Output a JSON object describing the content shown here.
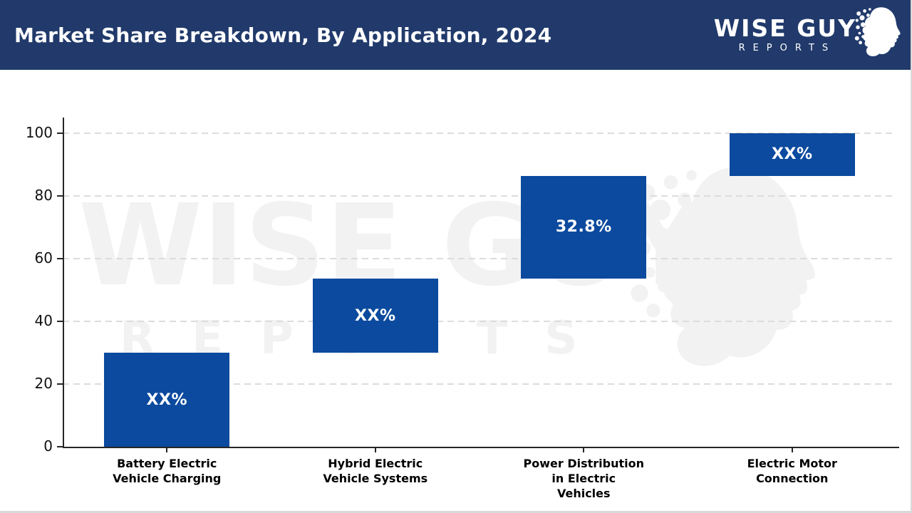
{
  "header": {
    "title": "Market Share Breakdown, By Application, 2024",
    "logo": {
      "wordmark": "WISE GUY",
      "subtitle": "REPORTS"
    }
  },
  "watermark": {
    "wordmark": "WISE GUY",
    "subtitle": "REPORTS"
  },
  "chart_data": {
    "type": "bar",
    "subtype": "floating-segment-waterfall",
    "title": "Market Share Breakdown, By Application, 2024",
    "categories": [
      "Battery Electric Vehicle Charging",
      "Hybrid Electric Vehicle Systems",
      "Power Distribution in Electric Vehicles",
      "Electric Motor Connection"
    ],
    "category_lines": [
      [
        "Battery Electric",
        "Vehicle Charging"
      ],
      [
        "Hybrid Electric",
        "Vehicle Systems"
      ],
      [
        "Power Distribution",
        "in Electric",
        "Vehicles"
      ],
      [
        "Electric Motor",
        "Connection"
      ]
    ],
    "segments": [
      {
        "start": 0,
        "end": 30,
        "value": 30,
        "label": "XX%"
      },
      {
        "start": 30,
        "end": 53.6,
        "value": 23.6,
        "label": "XX%"
      },
      {
        "start": 53.6,
        "end": 86.4,
        "value": 32.8,
        "label": "32.8%"
      },
      {
        "start": 86.4,
        "end": 100,
        "value": 13.6,
        "label": "XX%"
      }
    ],
    "ylim": [
      0,
      100
    ],
    "yticks": [
      0,
      20,
      40,
      60,
      80,
      100
    ],
    "xlabel": "",
    "ylabel": "",
    "legend": "none",
    "grid": {
      "horizontal": true,
      "style": "dashed",
      "color": "#dcdcdc"
    },
    "bar_color": "#0b4a9e",
    "bar_label_color": "#ffffff",
    "header_color": "#213a6b"
  }
}
